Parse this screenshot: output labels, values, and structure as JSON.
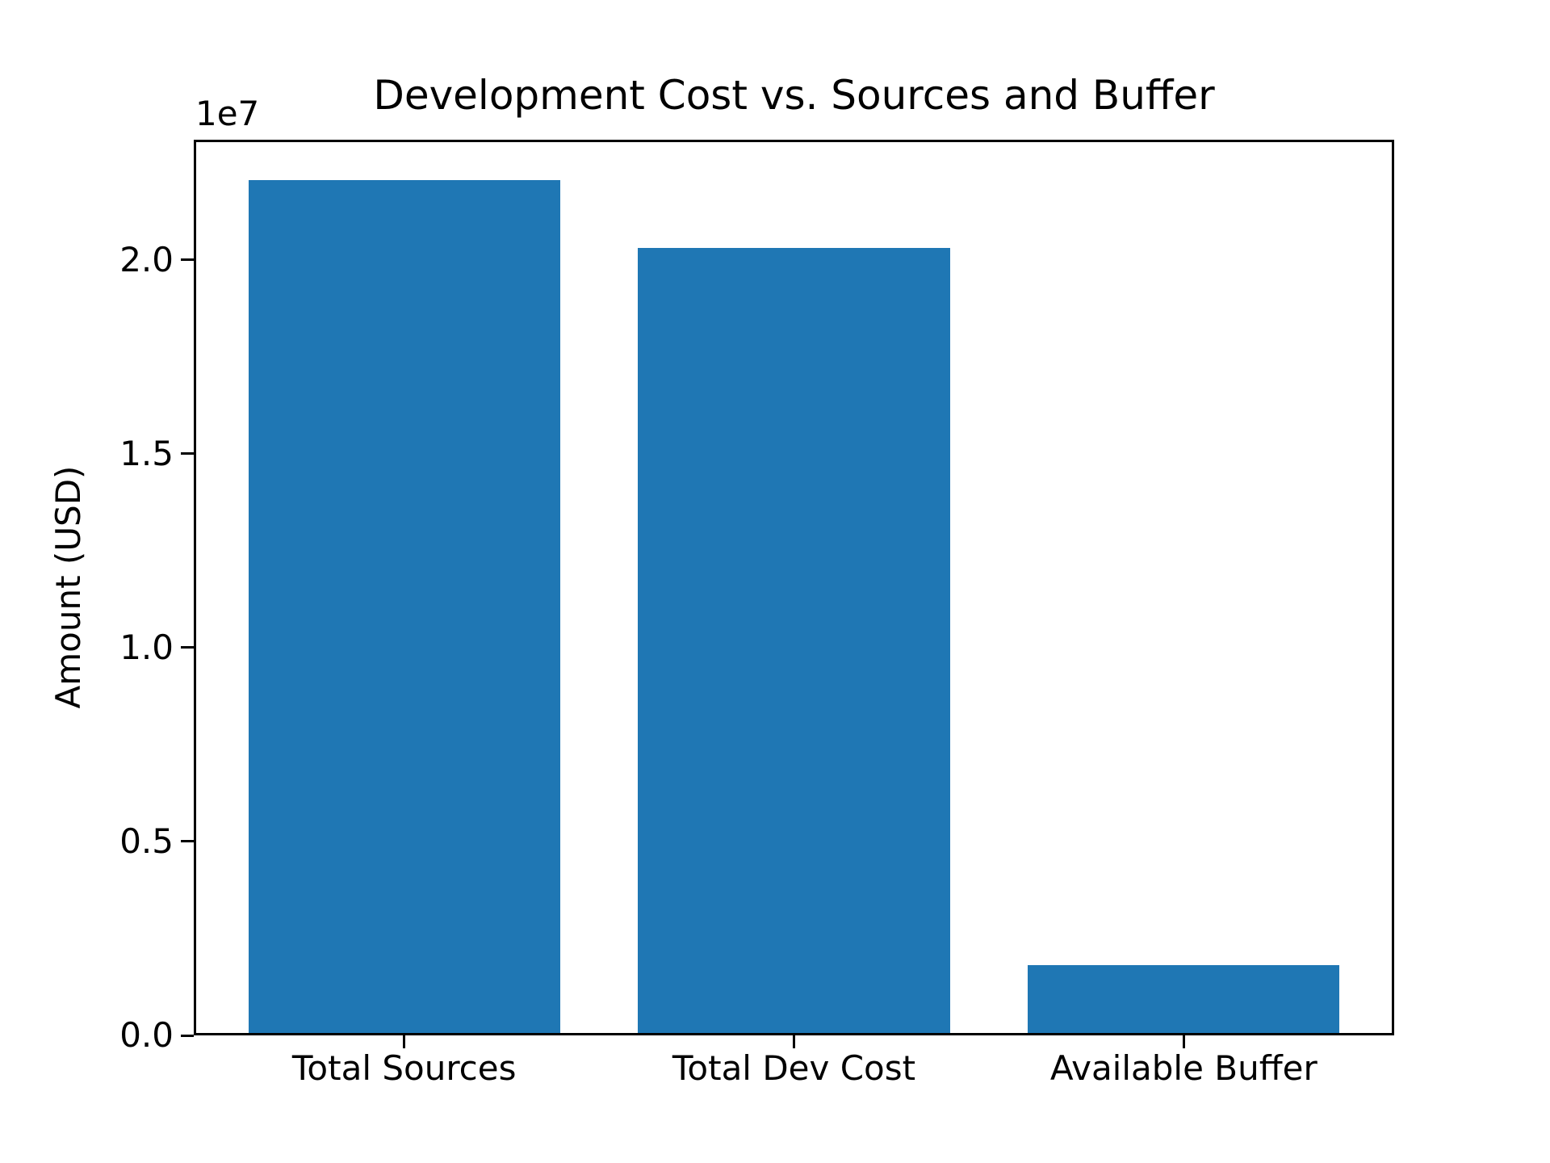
{
  "chart_data": {
    "type": "bar",
    "title": "Development Cost vs. Sources and Buffer",
    "xlabel": "",
    "ylabel": "Amount (USD)",
    "y_offset_label": "1e7",
    "categories": [
      "Total Sources",
      "Total Dev Cost",
      "Available Buffer"
    ],
    "values": [
      22000000,
      20250000,
      1750000
    ],
    "bar_color": "#1f77b4",
    "bar_width": 0.8,
    "xlim": [
      -0.54,
      2.54
    ],
    "ylim": [
      0,
      23100000
    ],
    "yticks": [
      0,
      5000000,
      10000000,
      15000000,
      20000000
    ],
    "ytick_labels": [
      "0.0",
      "0.5",
      "1.0",
      "1.5",
      "2.0"
    ],
    "grid": false,
    "legend": "none",
    "spine_color": "#000000",
    "background_color": "#ffffff"
  }
}
